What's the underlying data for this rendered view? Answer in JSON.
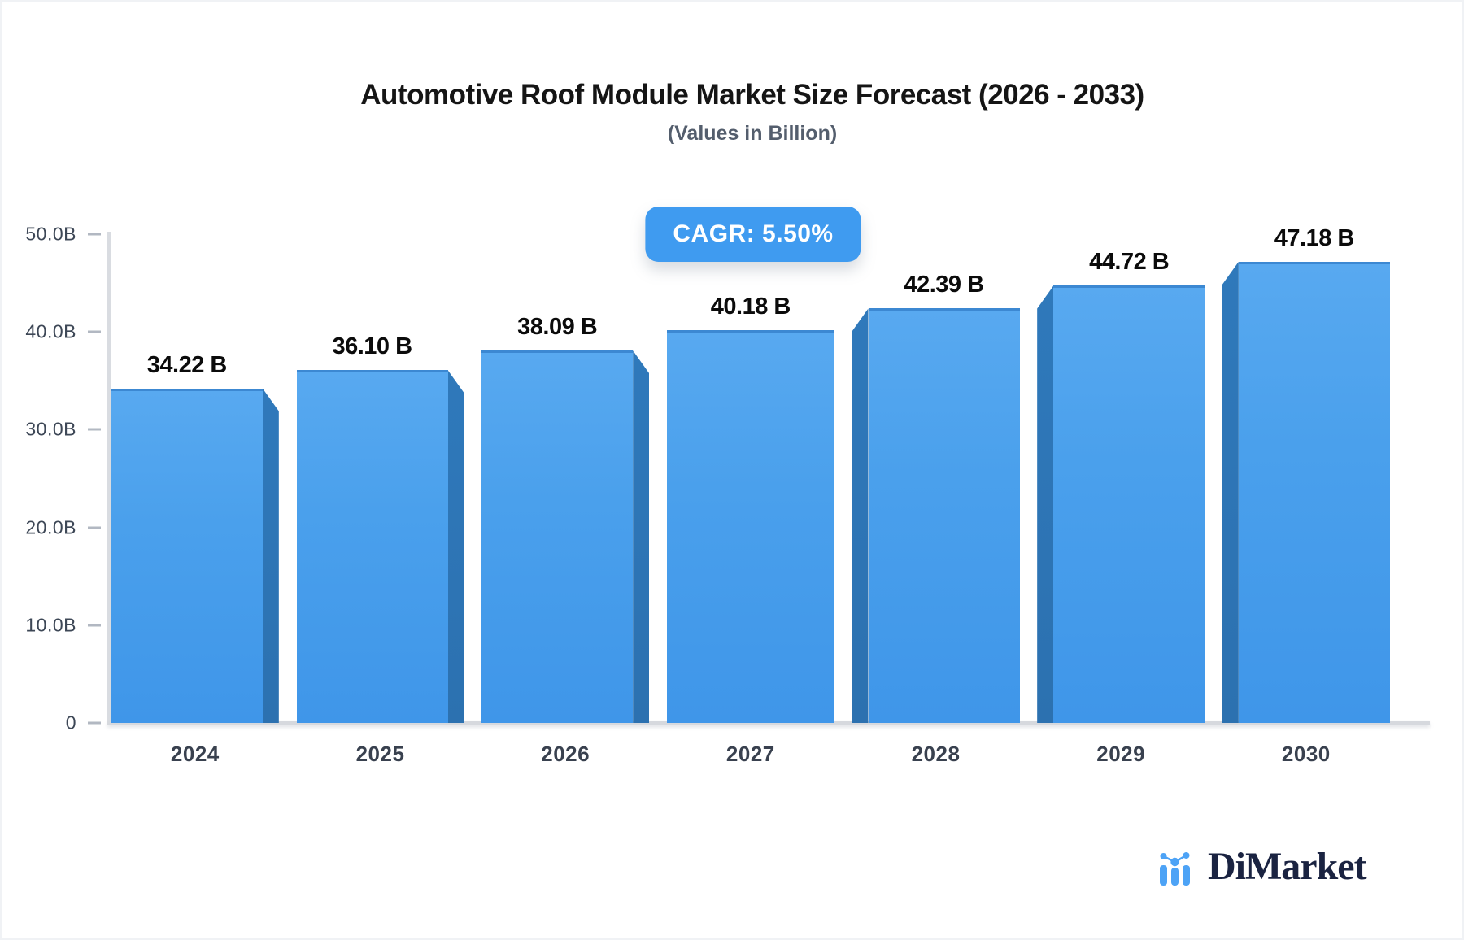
{
  "header": {
    "title": "Automotive Roof Module Market Size Forecast (2026 - 2033)",
    "subtitle": "(Values in Billion)",
    "cagr_badge": "CAGR: 5.50%"
  },
  "chart_data": {
    "type": "bar",
    "title": "Automotive Roof Module Market Size Forecast (2026 - 2033)",
    "subtitle": "(Values in Billion)",
    "cagr_percent": "5.50%",
    "categories": [
      "2024",
      "2025",
      "2026",
      "2027",
      "2028",
      "2029",
      "2030"
    ],
    "values": [
      34.22,
      36.1,
      38.09,
      40.18,
      42.39,
      44.72,
      47.18
    ],
    "bar_labels": [
      "34.22 B",
      "36.10 B",
      "38.09 B",
      "40.18 B",
      "42.39 B",
      "44.72 B",
      "47.18 B"
    ],
    "unit": "Billion",
    "xlabel": "",
    "ylabel": "",
    "ylim": [
      0,
      50
    ],
    "yticks": [
      {
        "label": "50.0B",
        "value": 50
      },
      {
        "label": "40.0B",
        "value": 40
      },
      {
        "label": "30.0B",
        "value": 30
      },
      {
        "label": "20.0B",
        "value": 20
      },
      {
        "label": "10.0B",
        "value": 10
      },
      {
        "label": "0",
        "value": 0
      }
    ],
    "grid": false,
    "legend": false,
    "colors": {
      "bar_face_top": "#58a9f0",
      "bar_face_bottom": "#3f96e9",
      "bar_side": "#2e76b6",
      "bar_top_edge": "#3c88d2",
      "badge_background": "#3f9bf0",
      "badge_text": "#ffffff",
      "axis_line": "#d9dce1",
      "tick_text": "#3d4756",
      "value_label_text": "#0b0b0b",
      "logo_blue": "#4da3f6",
      "logo_navy": "#1a2341"
    }
  },
  "footer": {
    "brand": "DiMarket",
    "brand_icon": "mini-bar-line-chart-icon"
  }
}
